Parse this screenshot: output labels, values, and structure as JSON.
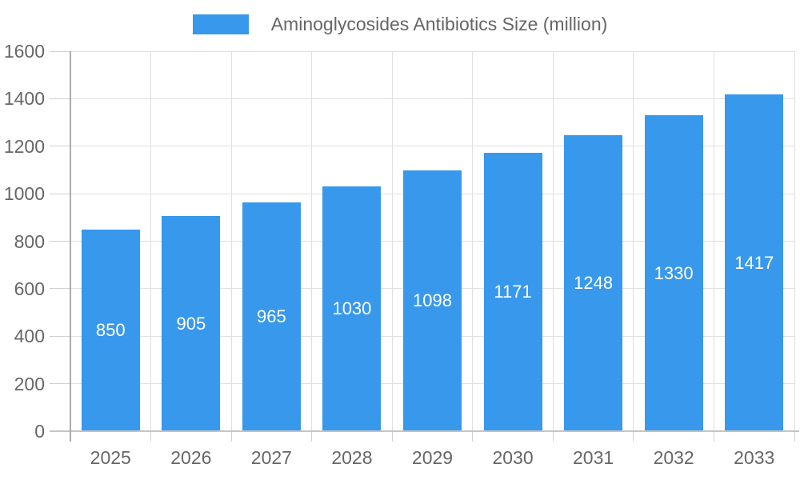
{
  "legend": {
    "label": "Aminoglycosides Antibiotics Size (million)"
  },
  "chart_data": {
    "type": "bar",
    "title": "",
    "series_name": "Aminoglycosides Antibiotics Size (million)",
    "categories": [
      "2025",
      "2026",
      "2027",
      "2028",
      "2029",
      "2030",
      "2031",
      "2032",
      "2033"
    ],
    "values": [
      850,
      905,
      965,
      1030,
      1098,
      1171,
      1248,
      1330,
      1417
    ],
    "xlabel": "",
    "ylabel": "",
    "ylim": [
      0,
      1600
    ],
    "ytick_step": 200,
    "grid": true,
    "legend_position": "top",
    "bar_labels_inside": true,
    "colors": {
      "bar": "#3898ec",
      "bar_label": "#ffffff",
      "axis_text": "#666666",
      "gridline": "#e0e0e0",
      "y_axis_line": "#aaaaaa",
      "x_axis_line": "#c4c4c4",
      "tick": "#cfcfcf",
      "background": "#ffffff"
    }
  }
}
